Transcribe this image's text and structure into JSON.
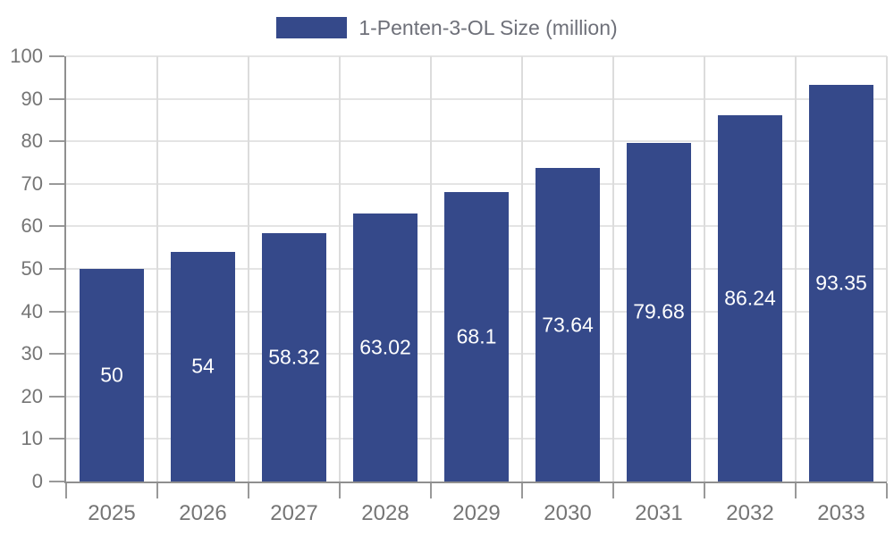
{
  "legend": {
    "label": "1-Penten-3-OL Size (million)"
  },
  "chart_data": {
    "type": "bar",
    "title": "1-Penten-3-OL Size (million)",
    "categories": [
      "2025",
      "2026",
      "2027",
      "2028",
      "2029",
      "2030",
      "2031",
      "2032",
      "2033"
    ],
    "values": [
      50,
      54,
      58.32,
      63.02,
      68.1,
      73.64,
      79.68,
      86.24,
      93.35
    ],
    "value_labels": [
      "50",
      "54",
      "58.32",
      "63.02",
      "68.1",
      "73.64",
      "79.68",
      "86.24",
      "93.35"
    ],
    "xlabel": "",
    "ylabel": "",
    "ylim": [
      0,
      100
    ],
    "ytick_interval": 10,
    "ytick_labels": [
      "0",
      "10",
      "20",
      "30",
      "40",
      "50",
      "60",
      "70",
      "80",
      "90",
      "100"
    ],
    "grid": true,
    "legend_position": "top-center",
    "colors": {
      "bar": "#35498a",
      "bar_label": "#ffffff",
      "grid_h": "#e4e4e4",
      "grid_v": "#dcdcdc",
      "axis": "#8f8f8f",
      "tick": "#999999",
      "tick_text": "#757575",
      "legend_text": "#6e7079",
      "background": "#ffffff"
    }
  }
}
